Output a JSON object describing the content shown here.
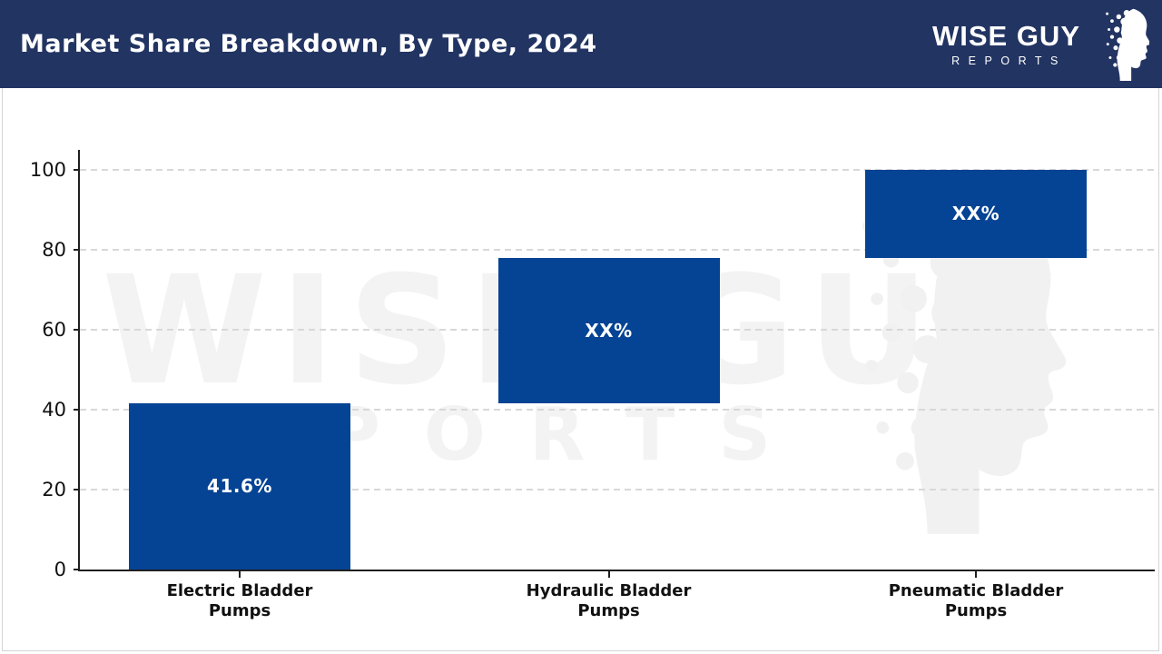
{
  "header": {
    "title": "Market Share Breakdown, By Type, 2024",
    "bg_color": "#223462",
    "logo": {
      "name": "WISE GUY",
      "sub": "REPORTS"
    }
  },
  "watermark": {
    "line1": "WISE GUY",
    "line2": "REPORTS"
  },
  "chart_data": {
    "type": "bar",
    "variant": "stacked-waterfall",
    "title": "Market Share Breakdown, By Type, 2024",
    "categories": [
      "Electric Bladder Pumps",
      "Hydraulic Bladder Pumps",
      "Pneumatic Bladder Pumps"
    ],
    "categories_multiline": [
      "Electric Bladder\nPumps",
      "Hydraulic Bladder\nPumps",
      "Pneumatic Bladder\nPumps"
    ],
    "segments": [
      {
        "category": "Electric Bladder Pumps",
        "from": 0,
        "to": 41.6,
        "label": "41.6%"
      },
      {
        "category": "Hydraulic Bladder Pumps",
        "from": 41.6,
        "to": 78,
        "label": "XX%"
      },
      {
        "category": "Pneumatic Bladder Pumps",
        "from": 78,
        "to": 100,
        "label": "XX%"
      }
    ],
    "y_ticks": [
      0,
      20,
      40,
      60,
      80,
      100
    ],
    "ylim": [
      0,
      105
    ],
    "grid": "dashed-horizontal",
    "legend": "none",
    "colors": {
      "bar": "#054394",
      "grid": "#d8d8d8",
      "axis": "#1f1f1f",
      "bar_label_text": "#ffffff",
      "tick_text": "#111111",
      "header_bg": "#223462",
      "watermark": "#f3f3f3"
    }
  }
}
